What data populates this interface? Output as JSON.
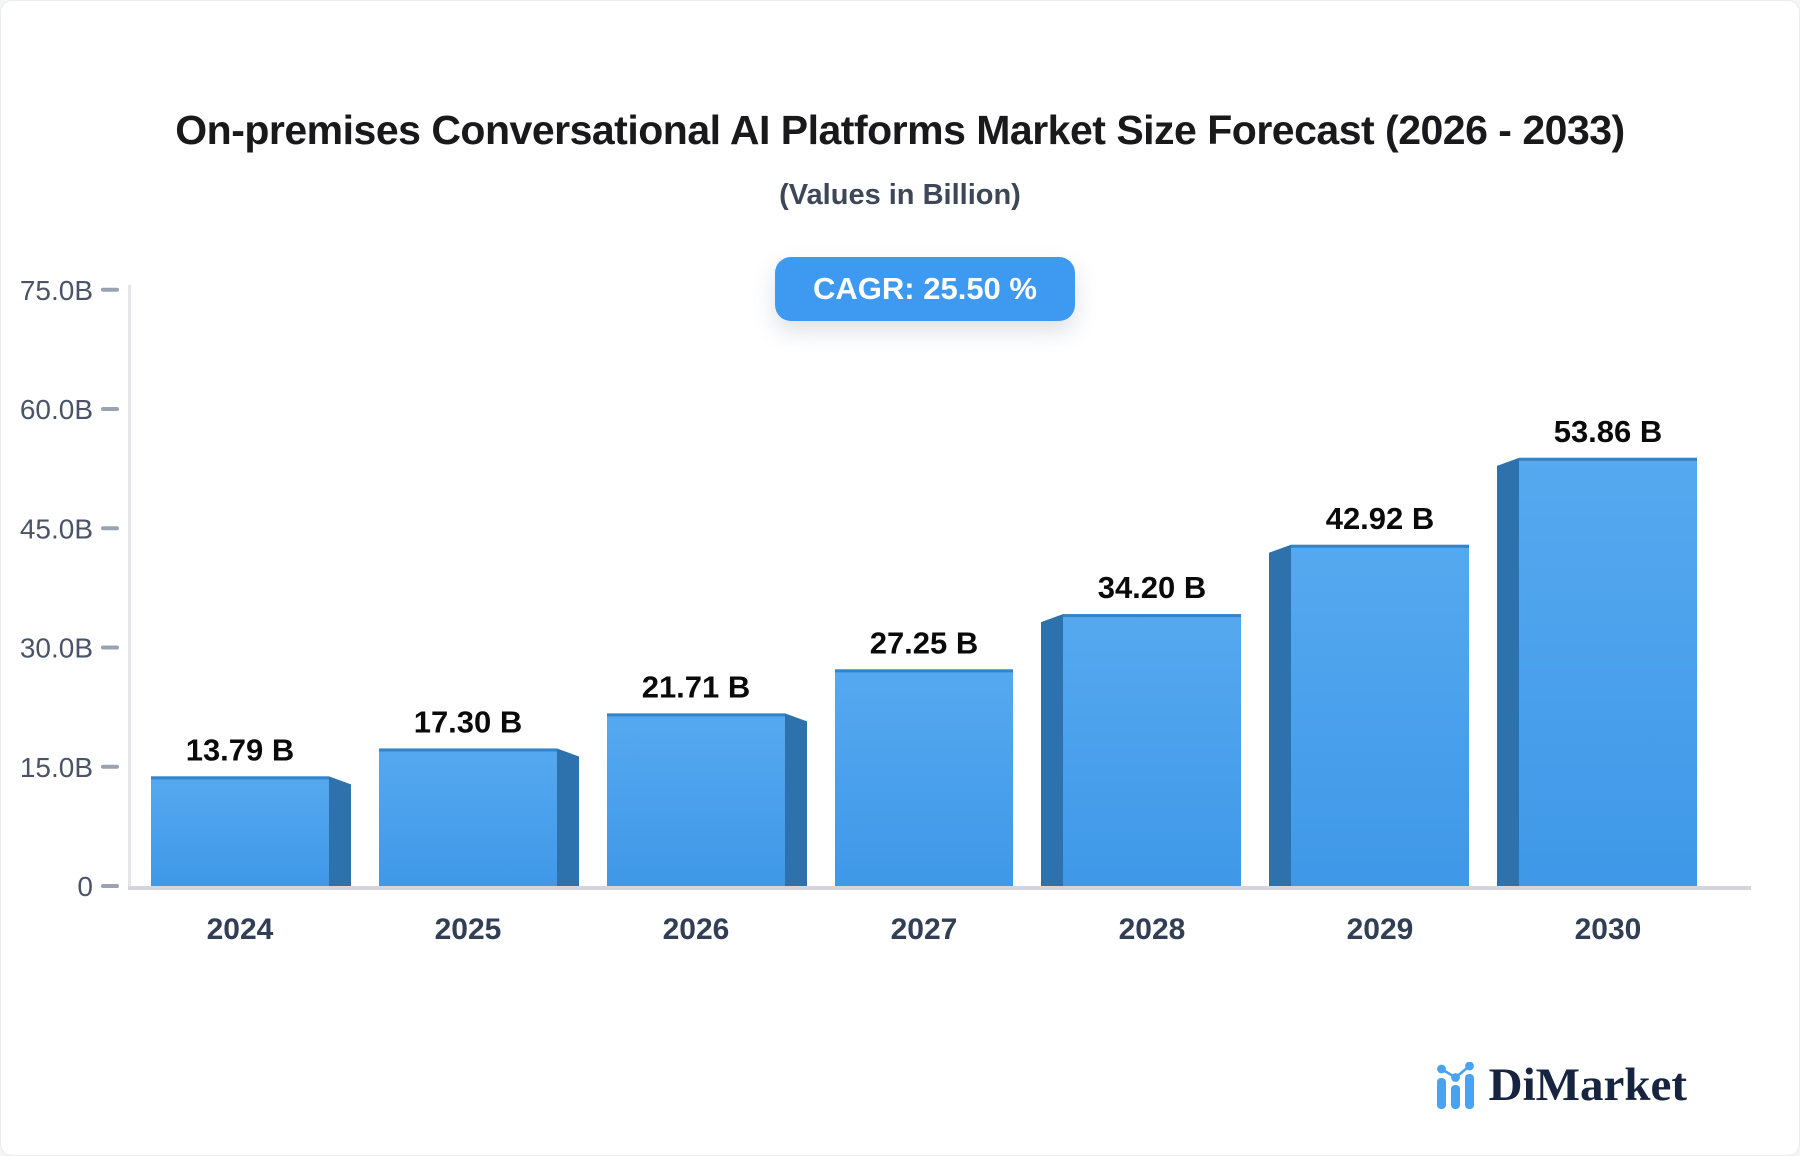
{
  "page": {
    "title": "On-premises Conversational AI Platforms Market Size Forecast (2026 - 2033)",
    "subtitle": "(Values in Billion)",
    "badge": "CAGR: 25.50 %"
  },
  "chart_data": {
    "type": "bar",
    "title": "On-premises Conversational AI Platforms Market Size Forecast (2026 - 2033)",
    "subtitle": "(Values in Billion)",
    "xlabel": "",
    "ylabel": "",
    "categories": [
      "2024",
      "2025",
      "2026",
      "2027",
      "2028",
      "2029",
      "2030"
    ],
    "values": [
      13.79,
      17.3,
      21.71,
      27.25,
      34.2,
      42.92,
      53.86
    ],
    "value_labels": [
      "13.79 B",
      "17.30 B",
      "21.71 B",
      "27.25 B",
      "34.20 B",
      "42.92 B",
      "53.86 B"
    ],
    "ylim": [
      0,
      75
    ],
    "yticks": [
      0,
      15,
      30,
      45,
      60,
      75
    ],
    "ytick_labels": [
      "0",
      "15.0B",
      "30.0B",
      "45.0B",
      "60.0B",
      "75.0B"
    ],
    "grid": false,
    "legend": null,
    "style": "3d-bars",
    "annotation": "CAGR: 25.50 %"
  },
  "logo": {
    "text": "DiMarket",
    "icon": "bar-line-chart-icon",
    "text_color": "#172440",
    "accent_color": "#4aa3f0"
  },
  "colors": {
    "bar_front_top": "#55a9ef",
    "bar_front_bottom": "#3f98e8",
    "bar_top_edge": "#3484c9",
    "bar_side": "#2e72ad",
    "badge_bg": "#3e9af0",
    "badge_text": "#ffffff",
    "baseline": "#d5d6db",
    "axis_line": "#e4e5e9",
    "tick": "#9aa3b1",
    "ytick_label": "#4a5367",
    "xtick_label": "#323e53",
    "value_label": "#0a0a0a"
  }
}
